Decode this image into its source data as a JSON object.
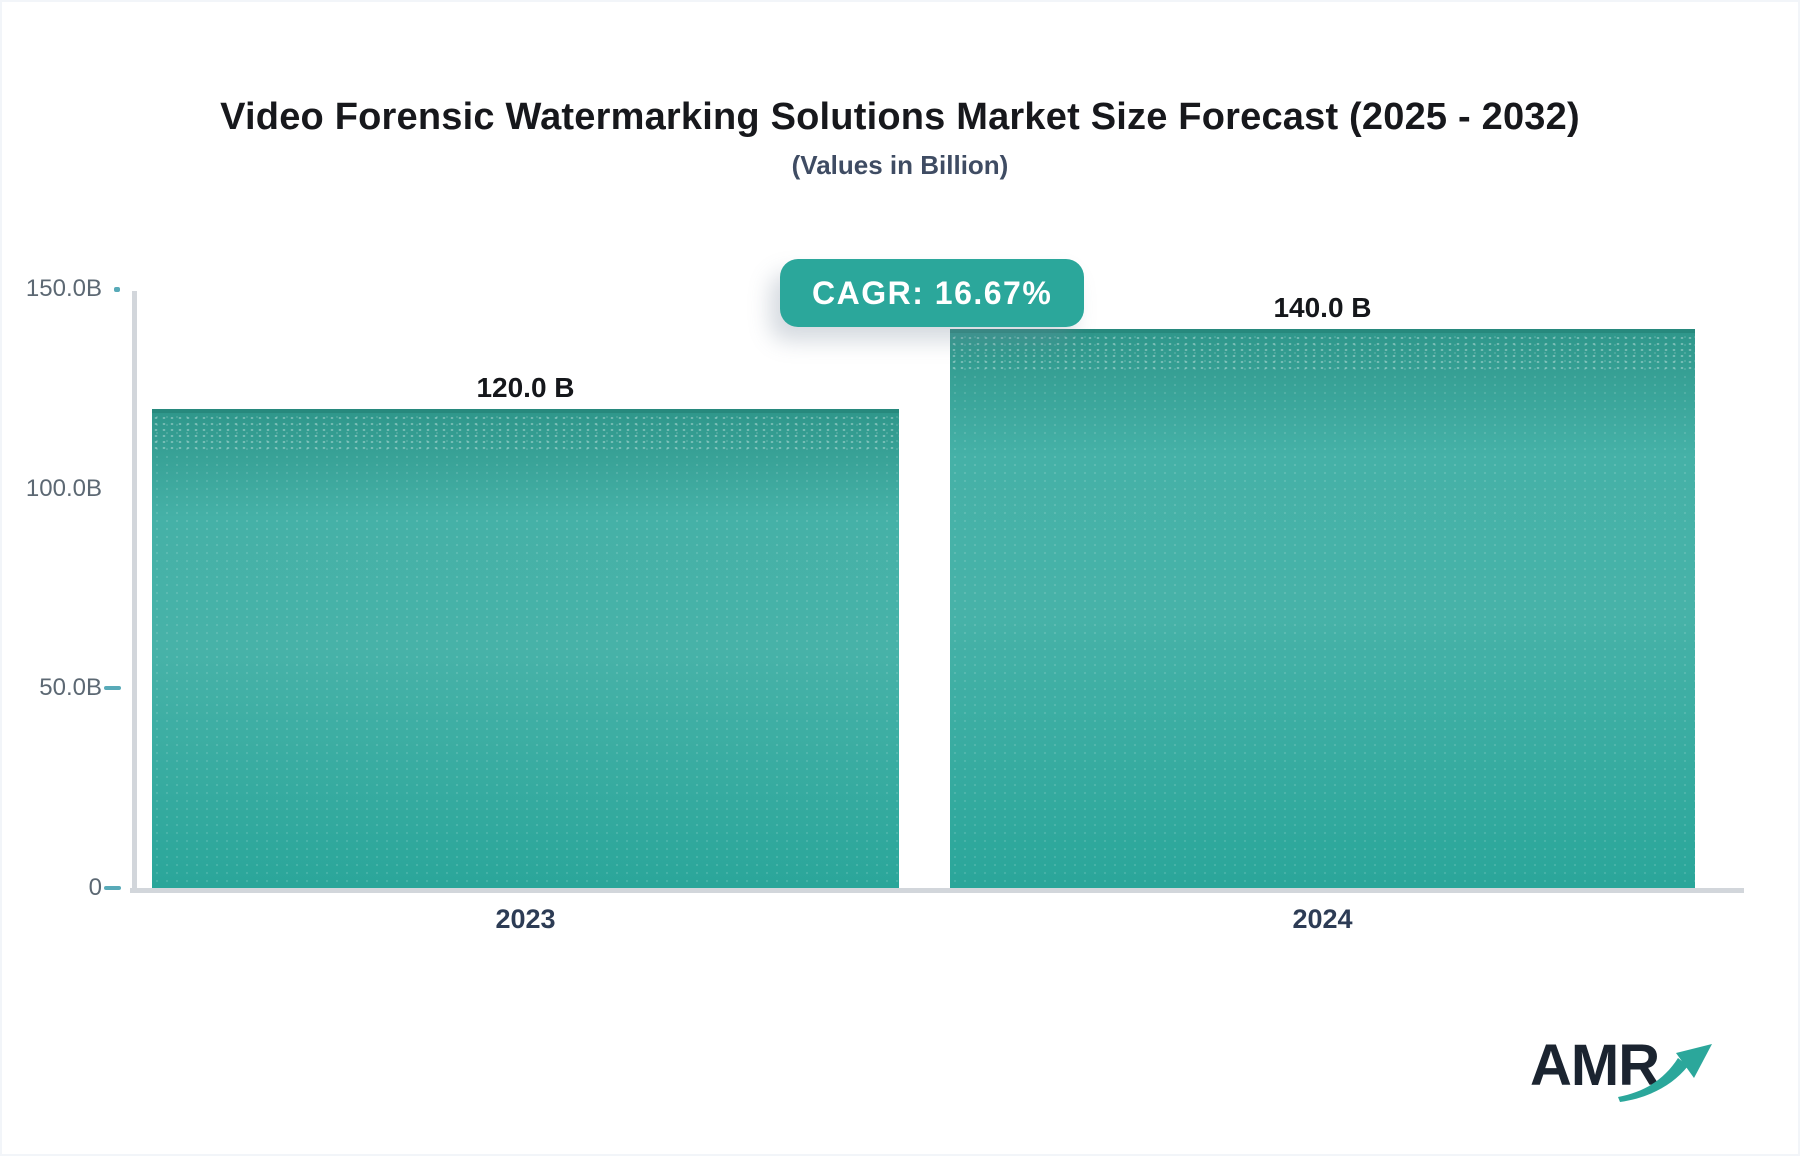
{
  "header": {
    "title": "Video Forensic Watermarking Solutions Market Size Forecast (2025 - 2032)",
    "subtitle": "(Values in Billion)"
  },
  "badge": {
    "label": "CAGR: 16.67%"
  },
  "chart_data": {
    "type": "bar",
    "title": "Video Forensic Watermarking Solutions Market Size Forecast (2025 - 2032)",
    "subtitle": "(Values in Billion)",
    "unit": "Billion",
    "categories": [
      "2023",
      "2024"
    ],
    "values": [
      120.0,
      140.0
    ],
    "value_labels": [
      "120.0 B",
      "140.0 B"
    ],
    "cagr_percent": 16.67,
    "xlabel": "",
    "ylabel": "",
    "ylim": [
      0,
      150
    ],
    "yticks": [
      {
        "label": "150.0B",
        "value": 150
      },
      {
        "label": "100.0B",
        "value": 100
      },
      {
        "label": "50.0B",
        "value": 50
      },
      {
        "label": "0",
        "value": 0
      }
    ],
    "grid": false,
    "legend": false,
    "bar_color": "#3aaca1",
    "axis_color": "#d2d6db"
  },
  "logo": {
    "text": "AMR",
    "arrow_icon": "growth-arrow-icon"
  },
  "colors": {
    "accent_teal": "#2ba79b",
    "bar_top_border": "#27897d",
    "title_text": "#17181c",
    "subtitle_text": "#3f4c63",
    "axis_line": "#d2d6db",
    "tick_text": "#5c6873",
    "category_text": "#2d3c55",
    "logo_text": "#1b2430"
  }
}
